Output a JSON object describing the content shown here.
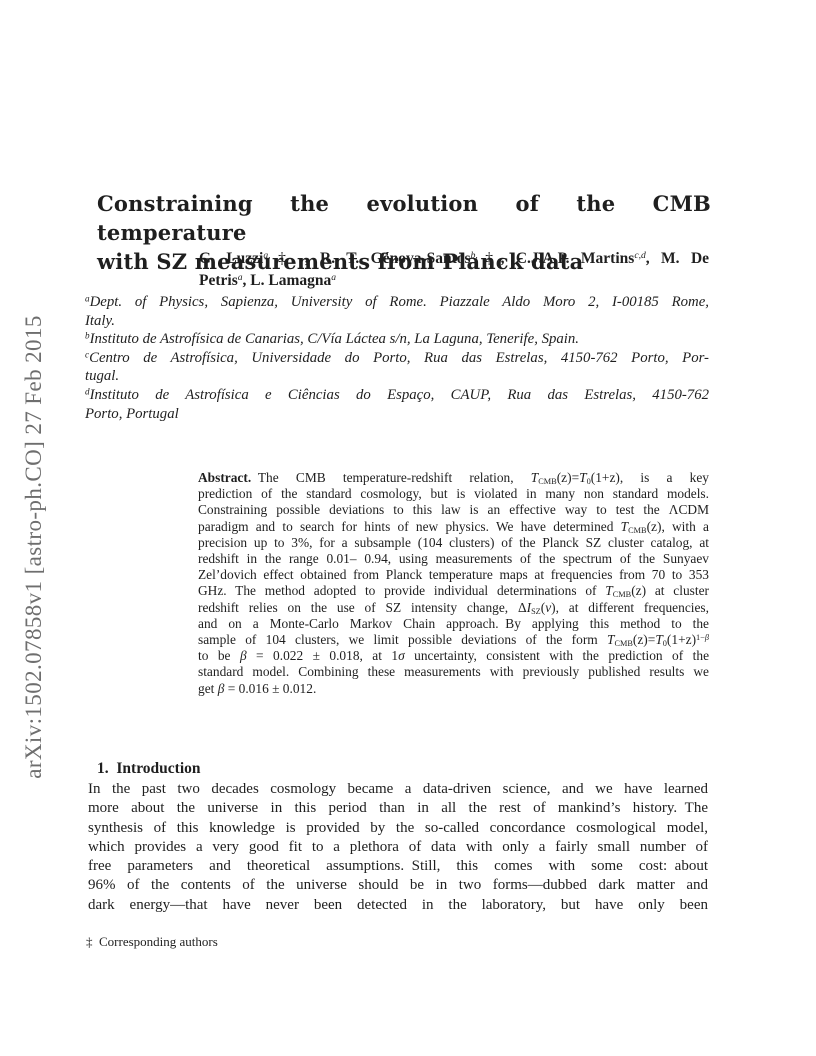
{
  "page": {
    "background": "#ffffff",
    "text_color": "#1f1f1f"
  },
  "watermark": {
    "text": "arXiv:1502.07858v1 [astro-ph.CO] 27 Feb 2015",
    "color": "#6e6e6e"
  },
  "title": {
    "lines": [
      [
        {
          "t": "Constraining the evolution of the CMB temperature"
        }
      ],
      [
        {
          "t": "with SZ measurements from Planck data"
        }
      ]
    ]
  },
  "authors": {
    "lines": [
      [
        {
          "t": "G. Luzzi",
          "b": 1
        },
        {
          "t": "a,",
          "v": "sup",
          "i": 1
        },
        {
          "t": "‡"
        },
        {
          "t": " , R. T. Génova-Santos",
          "b": 1
        },
        {
          "t": "b,",
          "v": "sup",
          "i": 1
        },
        {
          "t": "‡"
        },
        {
          "t": ", C.J.A.P. Martins",
          "b": 1
        },
        {
          "t": "c,d",
          "v": "sup",
          "i": 1
        },
        {
          "t": ", M. De",
          "b": 1
        }
      ],
      [
        {
          "t": "Petris",
          "b": 1
        },
        {
          "t": "a",
          "v": "sup",
          "i": 1
        },
        {
          "t": ", L. Lamagna",
          "b": 1
        },
        {
          "t": "a",
          "v": "sup",
          "i": 1
        }
      ]
    ]
  },
  "affiliations": [
    {
      "lines": [
        [
          {
            "t": "a",
            "v": "sup",
            "i": 1
          },
          {
            "t": "Dept. of Physics, Sapienza, University of Rome. Piazzale Aldo Moro 2, I-00185 Rome,",
            "i": 1
          }
        ],
        [
          {
            "t": "Italy.",
            "i": 1
          }
        ]
      ]
    },
    {
      "lines": [
        [
          {
            "t": "b",
            "v": "sup",
            "i": 1
          },
          {
            "t": "Instituto de Astrofísica de Canarias, C/Vía Láctea s/n, La Laguna, Tenerife, Spain.",
            "i": 1
          }
        ]
      ]
    },
    {
      "lines": [
        [
          {
            "t": "c",
            "v": "sup",
            "i": 1
          },
          {
            "t": "Centro de Astrofísica, Universidade do Porto, Rua das Estrelas, 4150-762 Porto, Por-",
            "i": 1
          }
        ],
        [
          {
            "t": "tugal.",
            "i": 1
          }
        ]
      ]
    },
    {
      "lines": [
        [
          {
            "t": "d",
            "v": "sup",
            "i": 1
          },
          {
            "t": "Instituto de Astrofísica e Ciências do Espaço, CAUP, Rua das Estrelas, 4150-762",
            "i": 1
          }
        ],
        [
          {
            "t": "Porto, Portugal",
            "i": 1
          }
        ]
      ]
    }
  ],
  "abstract": {
    "lines": [
      [
        {
          "t": "Abstract.",
          "b": 1
        },
        {
          "t": " The CMB temperature-redshift relation, "
        },
        {
          "t": "T",
          "i": 1
        },
        {
          "t": "CMB",
          "v": "sub"
        },
        {
          "t": "(z)="
        },
        {
          "t": "T",
          "i": 1
        },
        {
          "t": "0",
          "v": "sub"
        },
        {
          "t": "(1+z), is a key"
        }
      ],
      [
        {
          "t": "prediction of the standard cosmology, but is violated in many non standard models."
        }
      ],
      [
        {
          "t": "Constraining possible deviations to this law is an effective way to test the ΛCDM"
        }
      ],
      [
        {
          "t": "paradigm and to search for hints of new physics. We have determined "
        },
        {
          "t": "T",
          "i": 1
        },
        {
          "t": "CMB",
          "v": "sub"
        },
        {
          "t": "(z), with a"
        }
      ],
      [
        {
          "t": "precision up to 3%, for a subsample (104 clusters) of the Planck SZ cluster catalog, at"
        }
      ],
      [
        {
          "t": "redshift in the range 0.01– 0.94, using measurements of the spectrum of the Sunyaev"
        }
      ],
      [
        {
          "t": "Zel’dovich effect obtained from Planck temperature maps at frequencies from 70 to 353"
        }
      ],
      [
        {
          "t": "GHz. The method adopted to provide individual determinations of "
        },
        {
          "t": "T",
          "i": 1
        },
        {
          "t": "CMB",
          "v": "sub"
        },
        {
          "t": "(z) at cluster"
        }
      ],
      [
        {
          "t": "redshift relies on the use of SZ intensity change, Δ"
        },
        {
          "t": "I",
          "i": 1
        },
        {
          "t": "SZ",
          "v": "sub"
        },
        {
          "t": "("
        },
        {
          "t": "ν",
          "i": 1
        },
        {
          "t": "), at different frequencies,"
        }
      ],
      [
        {
          "t": "and on a Monte-Carlo Markov Chain approach. By applying this method to the"
        }
      ],
      [
        {
          "t": "sample of 104 clusters, we limit possible deviations of the form "
        },
        {
          "t": "T",
          "i": 1
        },
        {
          "t": "CMB",
          "v": "sub"
        },
        {
          "t": "(z)="
        },
        {
          "t": "T",
          "i": 1
        },
        {
          "t": "0",
          "v": "sub"
        },
        {
          "t": "(1+z)"
        },
        {
          "t": "1−",
          "v": "sup"
        },
        {
          "t": "β",
          "v": "sup",
          "i": 1
        }
      ],
      [
        {
          "t": "to be "
        },
        {
          "t": "β",
          "i": 1
        },
        {
          "t": " = 0.022 ± 0.018, at 1"
        },
        {
          "t": "σ",
          "i": 1
        },
        {
          "t": " uncertainty, consistent with the prediction of the"
        }
      ],
      [
        {
          "t": "standard model. Combining these measurements with previously published results we"
        }
      ],
      [
        {
          "t": "get "
        },
        {
          "t": "β",
          "i": 1
        },
        {
          "t": " = 0.016 ± 0.012."
        }
      ]
    ]
  },
  "introduction": {
    "heading": "1. Introduction",
    "lines": [
      [
        {
          "t": "In the past two decades cosmology became a data-driven science, and we have learned"
        }
      ],
      [
        {
          "t": "more about the universe in this period than in all the rest of mankind’s history. The"
        }
      ],
      [
        {
          "t": "synthesis of this knowledge is provided by the so-called concordance cosmological model,"
        }
      ],
      [
        {
          "t": "which provides a very good fit to a plethora of data with only a fairly small number of"
        }
      ],
      [
        {
          "t": "free parameters and theoretical assumptions. Still, this comes with some cost: about"
        }
      ],
      [
        {
          "t": "96% of the contents of the universe should be in two forms—dubbed dark matter and"
        }
      ],
      [
        {
          "t": "dark energy—that have never been detected in the laboratory, but have only been"
        }
      ]
    ]
  },
  "footnote": {
    "text": "‡ Corresponding authors"
  }
}
